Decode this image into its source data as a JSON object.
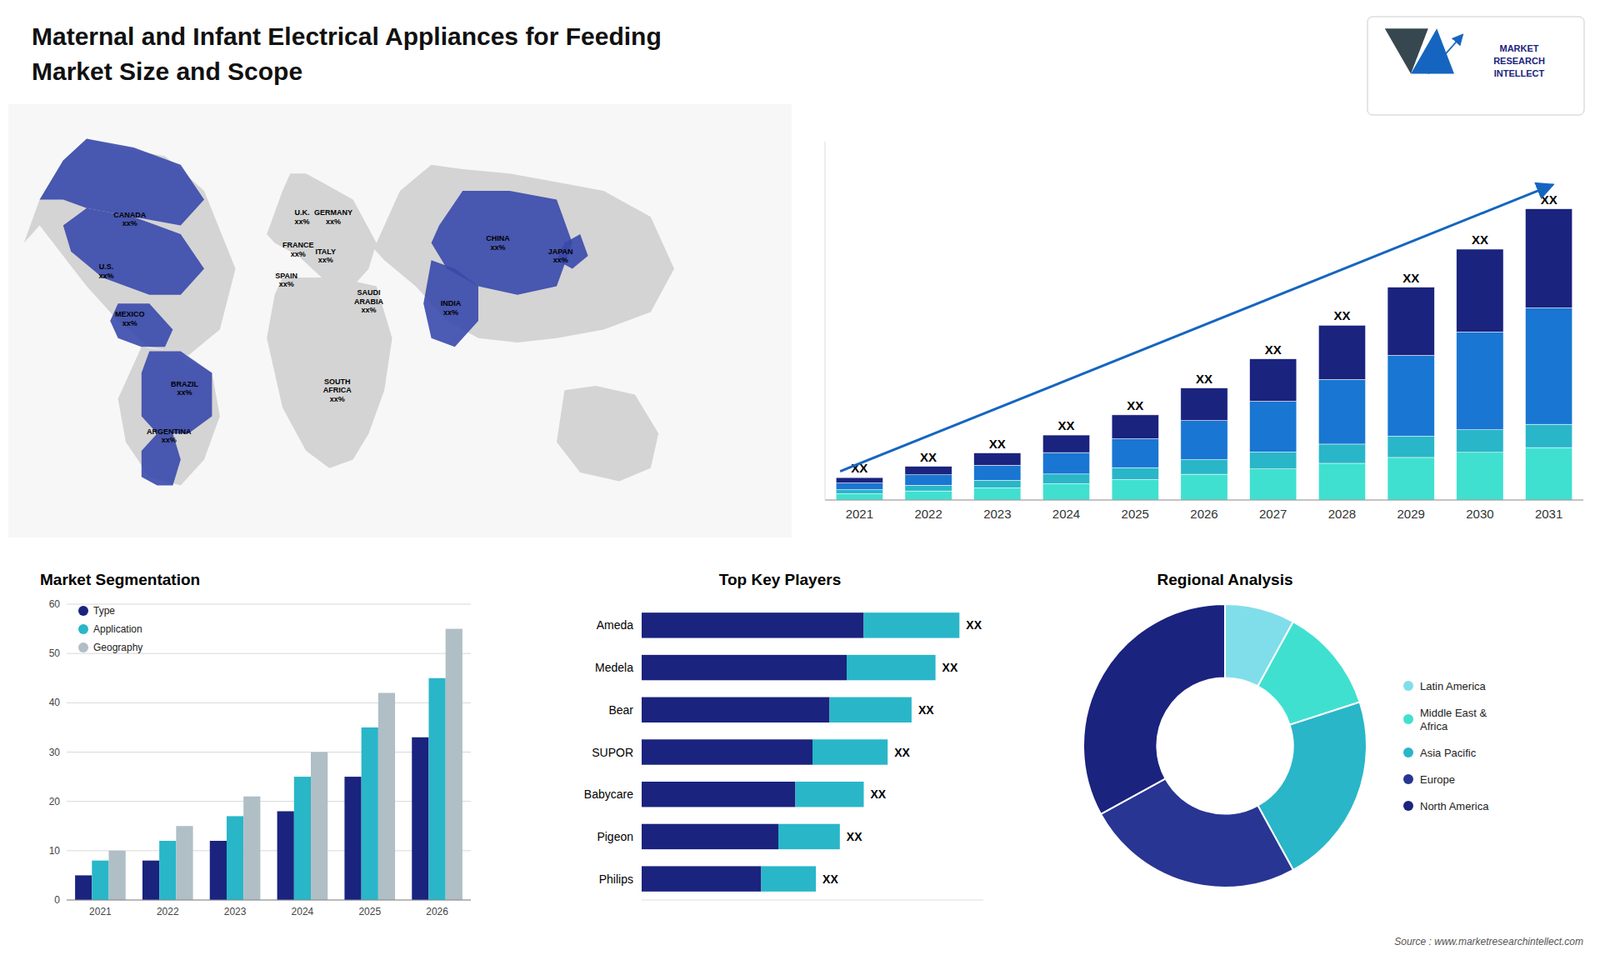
{
  "chart_data": [
    {
      "type": "bar",
      "title": "Maternal and Infant Electrical Appliances for Feeding",
      "subtitle": "Market Size and Scope",
      "annotations": [
        "MARKET\nRESEARCH\nINTELLECT",
        "Source : www.marketresearchintellect.com"
      ],
      "categories": [
        2021,
        2022,
        2023,
        2024,
        2025,
        2026,
        2027,
        2028,
        2029,
        2030,
        2031
      ],
      "stacked": true,
      "series": [
        {
          "color": "#40e0d0",
          "values": [
            0.28,
            0.405,
            0.546,
            0.725,
            0.912,
            1.15,
            1.386,
            1.638,
            1.9,
            2.128,
            2.34
          ]
        },
        {
          "color": "#29b6c8",
          "values": [
            0.18,
            0.255,
            0.336,
            0.435,
            0.532,
            0.65,
            0.756,
            0.858,
            0.95,
            1.008,
            1.04
          ]
        },
        {
          "color": "#1976d2",
          "values": [
            0.3,
            0.465,
            0.672,
            0.957,
            1.292,
            1.75,
            2.268,
            2.886,
            3.61,
            4.368,
            5.2
          ]
        },
        {
          "color": "#1a237e",
          "values": [
            0.24,
            0.375,
            0.546,
            0.783,
            1.064,
            1.45,
            1.89,
            2.418,
            3.04,
            3.696,
            4.42
          ],
          "value_labels": [
            "XX",
            "XX",
            "XX",
            "XX",
            "XX",
            "XX",
            "XX",
            "XX",
            "XX",
            "XX",
            "XX"
          ]
        }
      ],
      "ylim": [
        0,
        16
      ],
      "yticks": [],
      "tick_labels": "x"
    },
    {
      "type": "map",
      "annotations": [
        "CANADA\nxx%",
        "U.S.\nxx%",
        "MEXICO\nxx%",
        "BRAZIL\nxx%",
        "ARGENTINA\nxx%",
        "U.K.\nxx%",
        "FRANCE\nxx%",
        "SPAIN\nxx%",
        "GERMANY\nxx%",
        "ITALY\nxx%",
        "SAUDI\nARABIA\nxx%",
        "SOUTH\nAFRICA\nxx%",
        "CHINA\nxx%",
        "INDIA\nxx%",
        "JAPAN\nxx%"
      ]
    },
    {
      "type": "bar",
      "title": "Market Segmentation",
      "categories": [
        2021,
        2022,
        2023,
        2024,
        2025,
        2026
      ],
      "series": [
        {
          "name": "Type",
          "color": "#1a237e",
          "values": [
            5,
            8,
            12,
            18,
            25,
            33
          ]
        },
        {
          "name": "Application",
          "color": "#29b6c8",
          "values": [
            8,
            12,
            17,
            25,
            35,
            45
          ]
        },
        {
          "name": "Geography",
          "color": "#b0bec5",
          "values": [
            10,
            15,
            21,
            30,
            42,
            55
          ]
        }
      ],
      "ylim": [
        0,
        60
      ],
      "yticks": [
        0,
        10,
        20,
        30,
        40,
        50,
        60
      ],
      "grid": true,
      "legend": "upper left"
    },
    {
      "type": "bar",
      "title": "Top Key Players",
      "orientation": "horizontal",
      "stacked": true,
      "categories": [
        "Ameda",
        "Medela",
        "Bear",
        "SUPOR",
        "Babycare",
        "Pigeon",
        "Philips"
      ],
      "series": [
        {
          "color": "#1a237e",
          "values": [
            0.65,
            0.6,
            0.55,
            0.5,
            0.45,
            0.4,
            0.35
          ]
        },
        {
          "color": "#29b6c8",
          "values": [
            0.28,
            0.26,
            0.24,
            0.22,
            0.2,
            0.18,
            0.16
          ],
          "value_labels": [
            "XX",
            "XX",
            "XX",
            "XX",
            "XX",
            "XX",
            "XX"
          ]
        }
      ],
      "xlim": [
        0,
        1
      ],
      "tick_labels": false
    },
    {
      "type": "pie",
      "title": "Regional Analysis",
      "categories": [
        "Latin America",
        "Middle East &\nAfrica",
        "Asia Pacific",
        "Europe",
        "North America"
      ],
      "values": [
        8,
        12,
        22,
        25,
        33
      ],
      "colors": [
        "#80deea",
        "#40e0d0",
        "#29b6c8",
        "#283593",
        "#1a237e"
      ],
      "legend": "right"
    }
  ]
}
